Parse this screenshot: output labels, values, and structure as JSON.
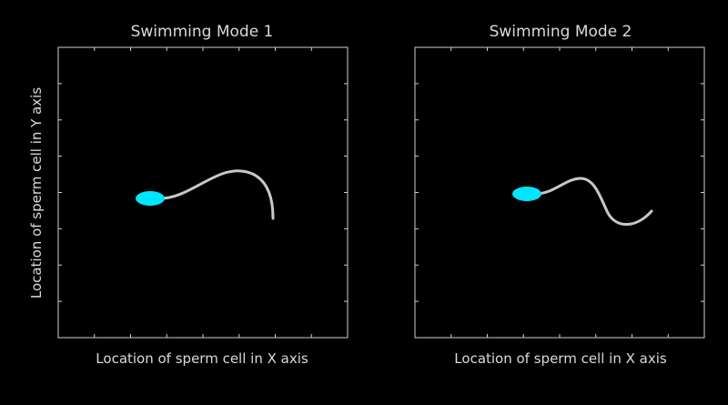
{
  "panels": [
    {
      "title": "Swimming Mode 1",
      "xlabel": "Location of sperm cell in X axis",
      "ylabel": "Location of sperm cell in Y axis"
    },
    {
      "title": "Swimming Mode 2",
      "xlabel": "Location of sperm cell in X axis",
      "ylabel": ""
    }
  ],
  "colors": {
    "background": "#000000",
    "frame": "#cfcfcf",
    "text": "#d9d9d9",
    "sperm_head": "#00e5ff",
    "sperm_tail": "#c8c8c8"
  }
}
